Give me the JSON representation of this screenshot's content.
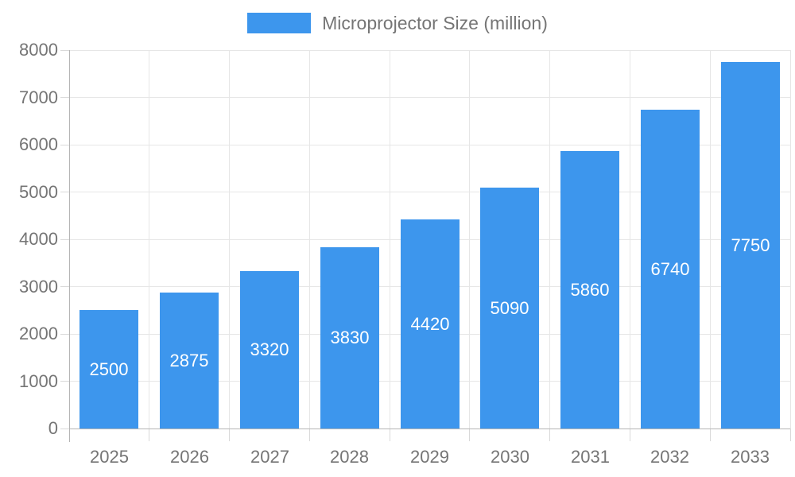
{
  "chart_data": {
    "type": "bar",
    "title": "Microprojector Size (million)",
    "categories": [
      "2025",
      "2026",
      "2027",
      "2028",
      "2029",
      "2030",
      "2031",
      "2032",
      "2033"
    ],
    "values": [
      2500,
      2875,
      3320,
      3830,
      4420,
      5090,
      5860,
      6740,
      7750
    ],
    "series": [
      {
        "name": "Microprojector Size (million)",
        "values": [
          2500,
          2875,
          3320,
          3830,
          4420,
          5090,
          5860,
          6740,
          7750
        ]
      }
    ],
    "xlabel": "",
    "ylabel": "",
    "ylim": [
      0,
      8000
    ],
    "ytick_step": 1000,
    "ytick_labels": [
      "0",
      "1000",
      "2000",
      "3000",
      "4000",
      "5000",
      "6000",
      "7000",
      "8000"
    ],
    "grid": true,
    "legend_position": "top-center",
    "bar_color": "#3d96ed",
    "bar_label_color": "#ffffff",
    "axis_text_color": "#757575",
    "gridline_color": "#e6e6e6",
    "axis_line_color": "#b5b5b5"
  }
}
